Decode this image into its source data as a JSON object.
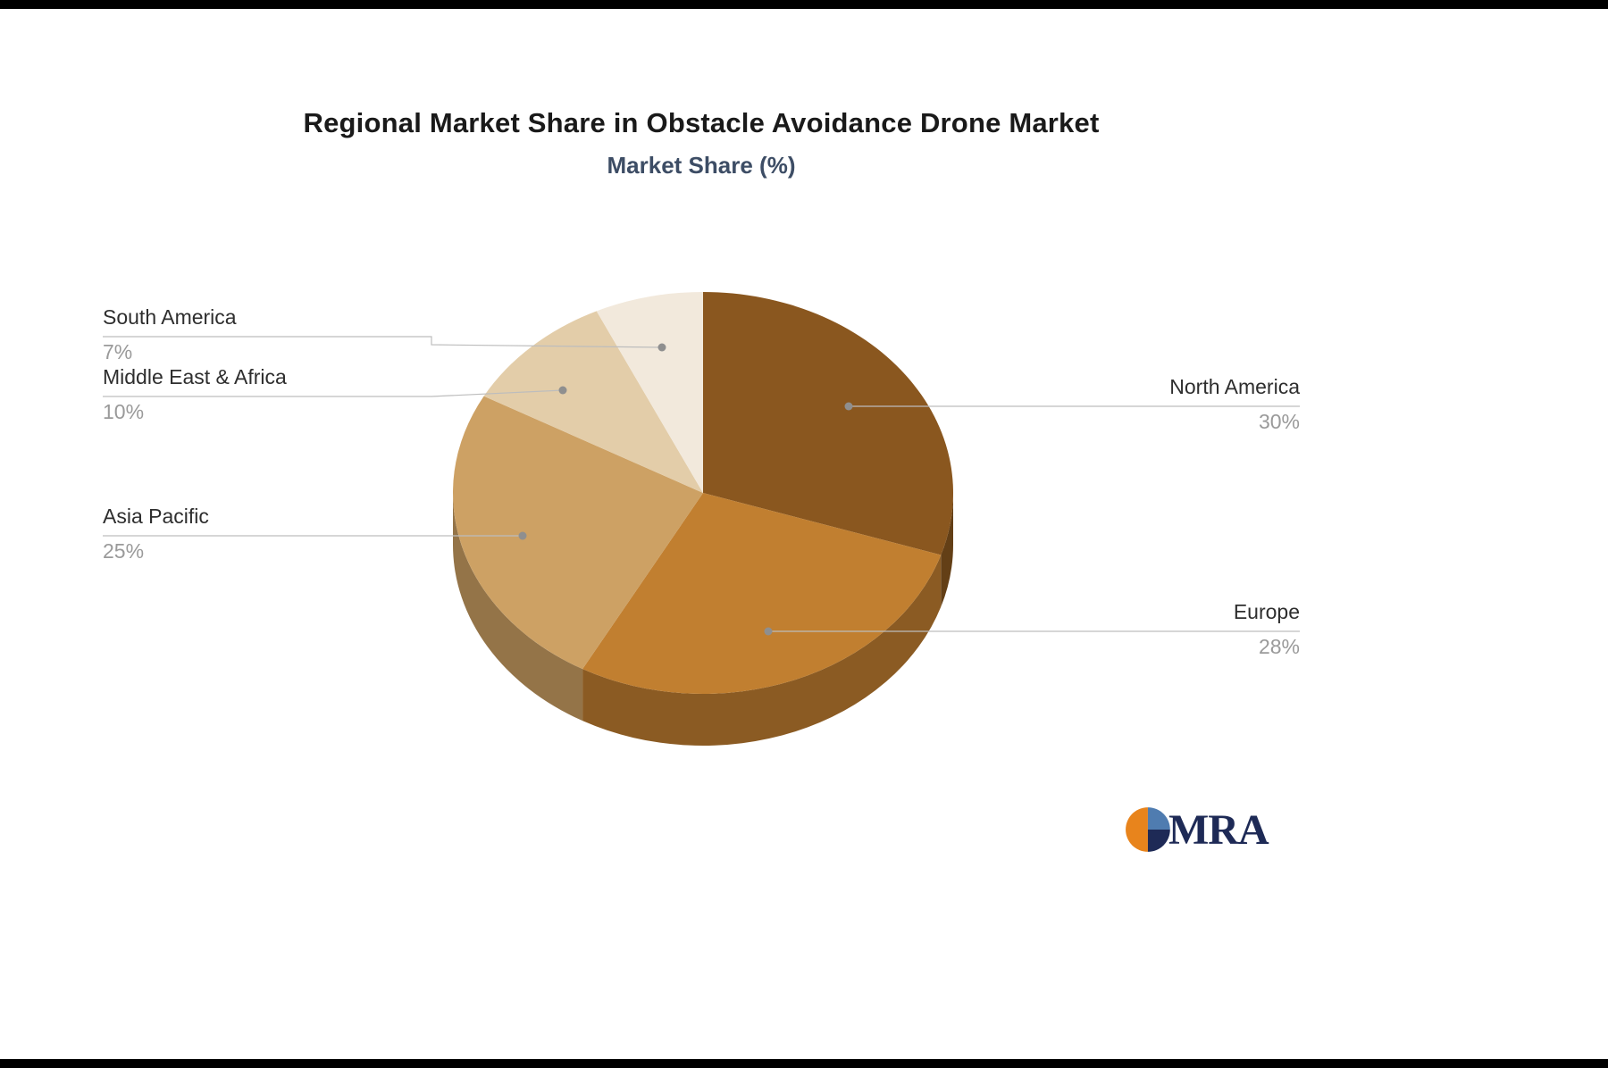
{
  "page": {
    "background": "#ffffff",
    "frame_bar_color": "#000000"
  },
  "chart_data": {
    "type": "pie",
    "title": "Regional Market Share in Obstacle Avoidance Drone Market",
    "subtitle": "Market Share (%)",
    "unit": "%",
    "effect": "3d-extruded",
    "legend_position": "none",
    "label_style": "leader-lines",
    "labels": [
      "North America",
      "Europe",
      "Asia Pacific",
      "Middle East & Africa",
      "South America"
    ],
    "values": [
      30,
      28,
      25,
      10,
      7
    ],
    "display_values": [
      "30%",
      "28%",
      "25%",
      "10%",
      "7%"
    ],
    "colors": [
      "#8a571f",
      "#c17f30",
      "#cda164",
      "#e3cda9",
      "#f2e9dc"
    ],
    "start_angle_deg": 0,
    "direction": "clockwise"
  },
  "branding": {
    "logo_text": "MRA",
    "logo_text_color": "#1e2a56",
    "icon_orange": "#e8841c",
    "icon_navy": "#1e2a56",
    "icon_blue": "#4f7cb0"
  }
}
